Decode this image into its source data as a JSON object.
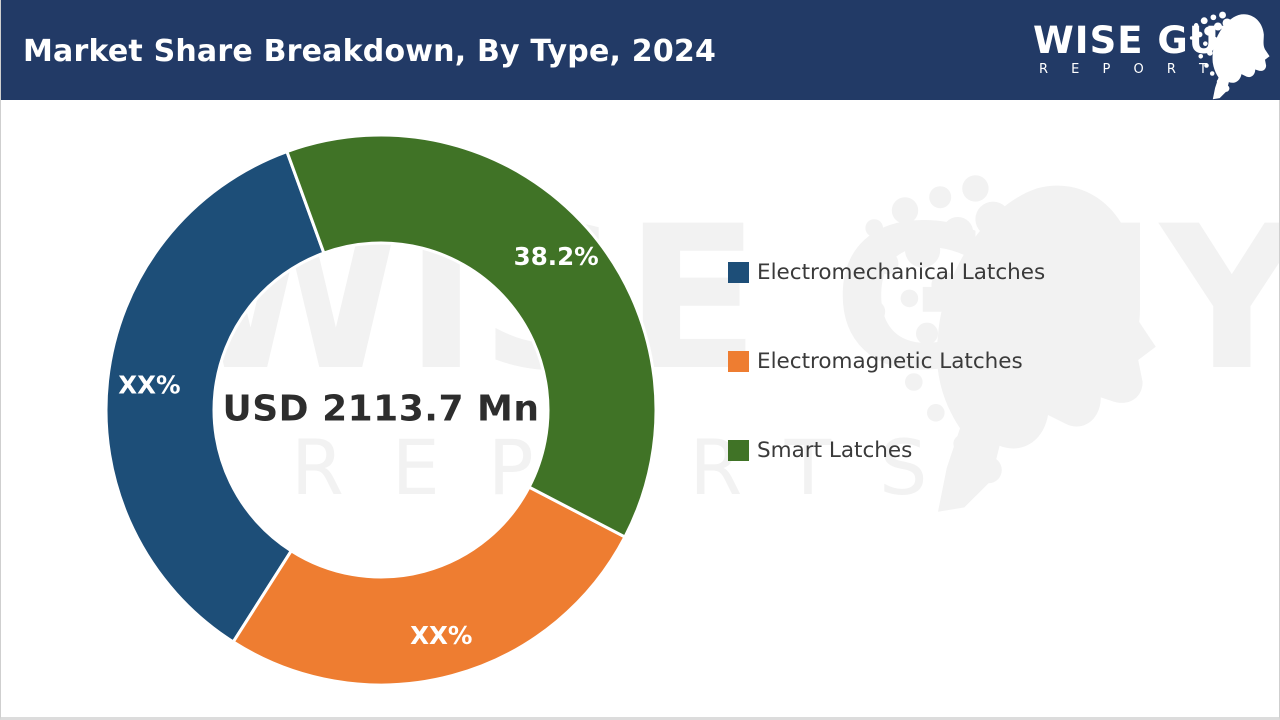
{
  "header": {
    "title": "Market Share Breakdown, By Type, 2024",
    "logo": {
      "line1": "WISE GUY",
      "line2": "R E P O R T S"
    }
  },
  "watermark": {
    "line1": "WISE GUY",
    "line2": "REPORTS"
  },
  "chart_data": {
    "type": "pie",
    "subtype": "donut",
    "title": "Market Share Breakdown, By Type, 2024",
    "center_label": "USD 2113.7 Mn",
    "legend_position": "right",
    "angle_reference": "degrees clockwise from 12 o'clock",
    "slices": [
      {
        "name": "Electromechanical Latches",
        "color": "#1d4e78",
        "label": "XX%",
        "value_pct": 35.4,
        "start_deg": 212.5,
        "end_deg": 340.0
      },
      {
        "name": "Electromagnetic Latches",
        "color": "#ee7d31",
        "label": "XX%",
        "value_pct": 26.4,
        "start_deg": 117.5,
        "end_deg": 212.5
      },
      {
        "name": "Smart Latches",
        "color": "#407326",
        "label": "38.2%",
        "value_pct": 38.2,
        "start_deg": 340.0,
        "end_deg": 477.5
      }
    ]
  }
}
